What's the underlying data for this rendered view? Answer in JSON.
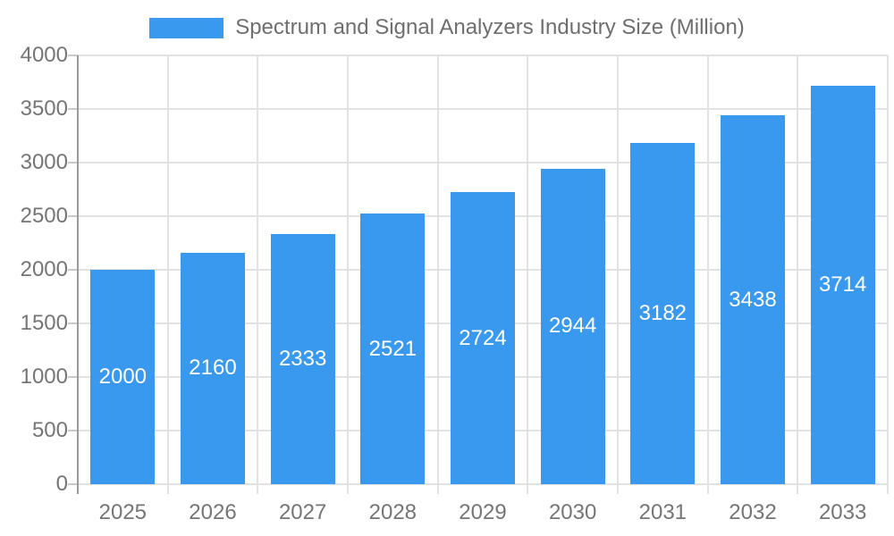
{
  "chart_data": {
    "type": "bar",
    "title": "Spectrum and Signal Analyzers Industry Size (Million)",
    "categories": [
      "2025",
      "2026",
      "2027",
      "2028",
      "2029",
      "2030",
      "2031",
      "2032",
      "2033"
    ],
    "values": [
      2000,
      2160,
      2333,
      2521,
      2724,
      2944,
      3182,
      3438,
      3714
    ],
    "xlabel": "",
    "ylabel": "",
    "ylim": [
      0,
      4000
    ],
    "yticks": [
      0,
      500,
      1000,
      1500,
      2000,
      2500,
      3000,
      3500,
      4000
    ],
    "grid": true,
    "legend_position": "top-center",
    "value_label_position": "inside-center",
    "colors": {
      "bar": "#3899EE",
      "value_label": "#FFFFFF",
      "tick_label": "#757575",
      "legend_label": "#6E6E6E",
      "gridline": "#E2E2E2",
      "axis_line": "#9A9A9A",
      "tick_mark": "#C9C9C9",
      "background": "#FFFFFF"
    }
  }
}
